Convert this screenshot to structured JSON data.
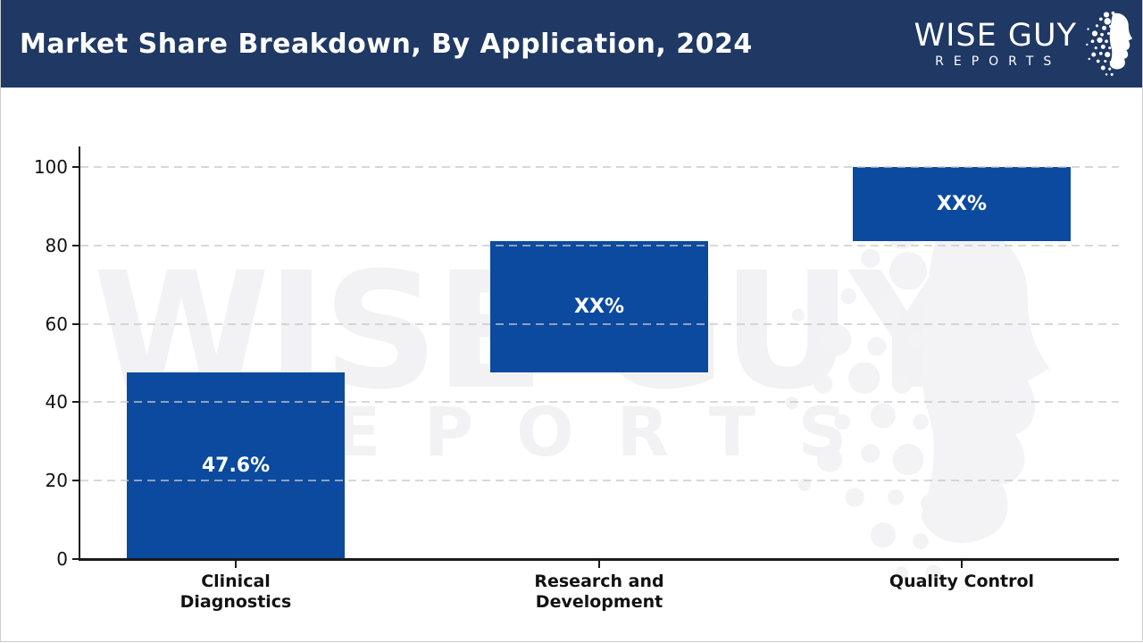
{
  "header": {
    "title": "Market Share Breakdown, By Application, 2024",
    "brand": {
      "name": "WISE GUY",
      "subtitle": "REPORTS",
      "icon": "dotted-head-profile-icon"
    }
  },
  "chart_data": {
    "type": "bar",
    "variant": "waterfall-segmented",
    "title": "Market Share Breakdown, By Application, 2024",
    "categories": [
      "Clinical Diagnostics",
      "Research and Development",
      "Quality Control"
    ],
    "categories_lines": [
      [
        "Clinical",
        "Diagnostics"
      ],
      [
        "Research and",
        "Development"
      ],
      [
        "Quality Control"
      ]
    ],
    "segments": [
      {
        "category": "Clinical Diagnostics",
        "start": 0,
        "end": 47.6,
        "label": "47.6%"
      },
      {
        "category": "Research and Development",
        "start": 47.6,
        "end": 81,
        "label": "XX%"
      },
      {
        "category": "Quality Control",
        "start": 81,
        "end": 100,
        "label": "XX%"
      }
    ],
    "ylim": [
      0,
      100
    ],
    "yticks": [
      0,
      20,
      40,
      60,
      80,
      100
    ],
    "xlabel": "",
    "ylabel": "",
    "grid": "horizontal-dashed",
    "legend": "none"
  },
  "watermark": {
    "name": "WISE GUY",
    "subtitle": "R E P O R T S",
    "icon": "dotted-head-profile-icon"
  },
  "colors": {
    "header_bg": "#1f3864",
    "bar": "#0b4a9f",
    "grid": "#c8c8c8",
    "axis": "#1a1a1a",
    "bar_label": "#ffffff",
    "watermark": "#f2f2f4",
    "border": "#cbcbcb"
  }
}
